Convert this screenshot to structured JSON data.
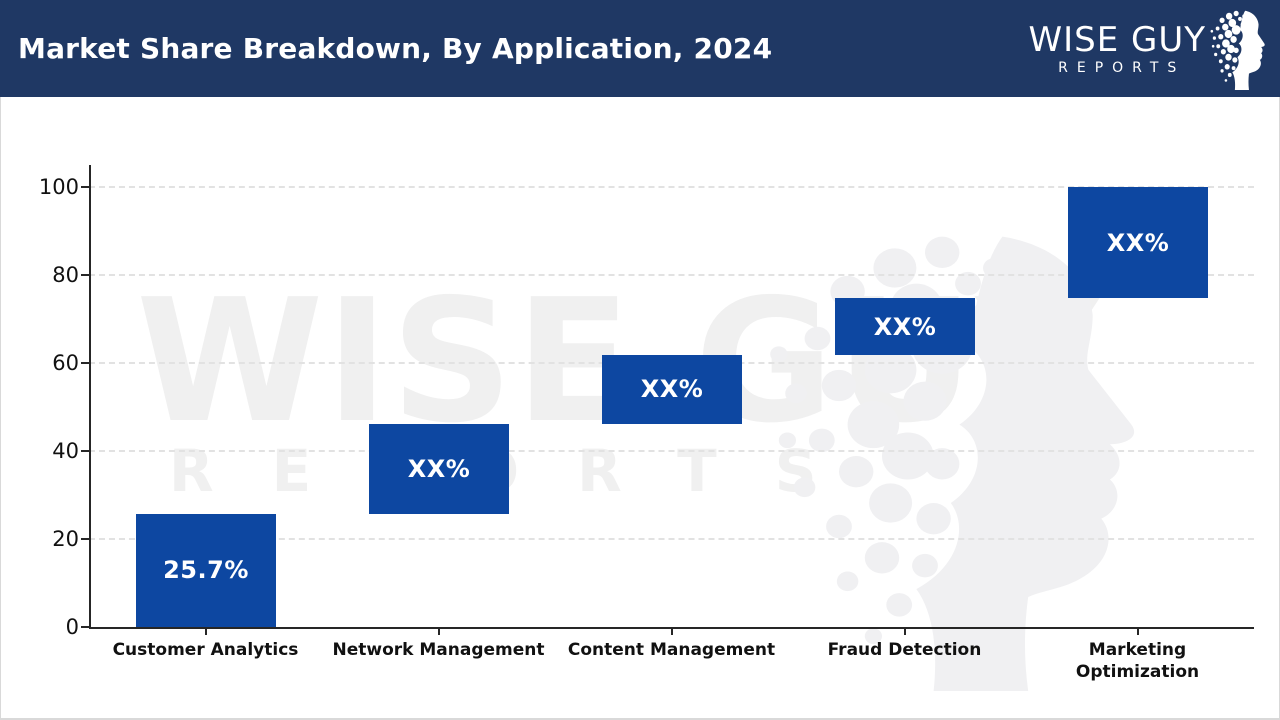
{
  "header": {
    "title": "Market Share Breakdown, By Application, 2024",
    "logo": {
      "name_line": "WISE GUY",
      "sub_line": "REPORTS"
    }
  },
  "watermark": {
    "name_line": "WISE GUY",
    "sub_line": "REPORTS"
  },
  "colors": {
    "header_bg": "#1f3864",
    "bar_fill": "#0d47a1",
    "bar_label_text": "#ffffff",
    "gridline": "#e2e2e2",
    "axis": "#262626",
    "watermark": "#f0f0f0",
    "page_bg": "#ffffff",
    "border": "#d9d9d9"
  },
  "chart_data": {
    "type": "bar",
    "subtype": "waterfall",
    "title": "Market Share Breakdown, By Application, 2024",
    "categories": [
      "Customer Analytics",
      "Network Management",
      "Content Management",
      "Fraud Detection",
      "Marketing\nOptimization"
    ],
    "values": [
      25.7,
      20.5,
      15.6,
      12.9,
      25.3
    ],
    "cumulative_start": [
      0,
      25.7,
      46.2,
      61.8,
      74.7
    ],
    "cumulative_end": [
      25.7,
      46.2,
      61.8,
      74.7,
      100
    ],
    "bar_labels": [
      "25.7%",
      "XX%",
      "XX%",
      "XX%",
      "XX%"
    ],
    "bar_color": "#0d47a1",
    "xlabel": "",
    "ylabel": "",
    "ylim": [
      0,
      105
    ],
    "yticks": [
      0,
      20,
      40,
      60,
      80,
      100
    ],
    "grid": "horizontal-dashed",
    "legend": false
  }
}
